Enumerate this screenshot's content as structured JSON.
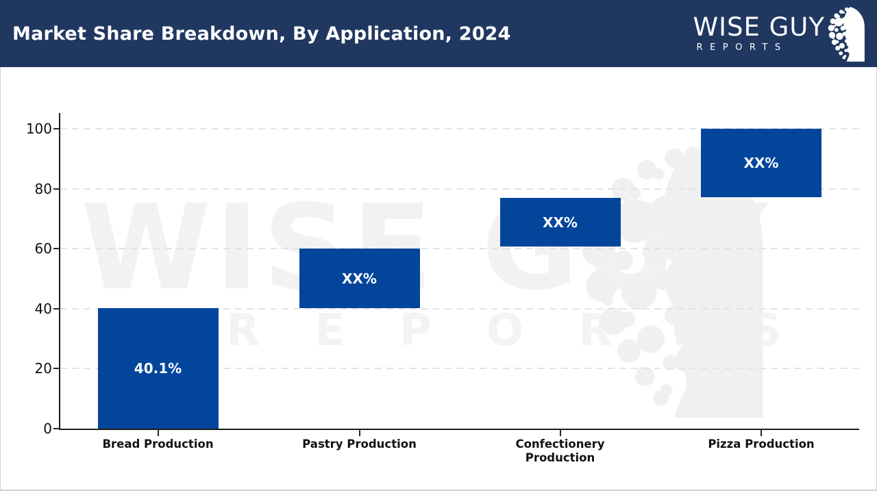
{
  "header": {
    "title": "Market Share Breakdown, By Application, 2024",
    "bg_color": "#203760",
    "logo": {
      "line1": "WISE GUY",
      "line2": "REPORTS"
    }
  },
  "watermark": {
    "line1": "WISE GUY",
    "line2": "REPORTS"
  },
  "chart_data": {
    "type": "bar",
    "subtype": "waterfall",
    "title": "Market Share Breakdown, By Application, 2024",
    "xlabel": "",
    "ylabel": "",
    "categories": [
      "Bread Production",
      "Pastry Production",
      "Confectionery\nProduction",
      "Pizza Production"
    ],
    "segments": [
      {
        "category": "Bread Production",
        "start": 0,
        "end": 40.1,
        "label": "40.1%"
      },
      {
        "category": "Pastry Production",
        "start": 40.1,
        "end": 60.1,
        "label": "XX%"
      },
      {
        "category": "Confectionery Production",
        "start": 60.7,
        "end": 76.9,
        "label": "XX%"
      },
      {
        "category": "Pizza Production",
        "start": 77.2,
        "end": 100,
        "label": "XX%"
      }
    ],
    "yticks": [
      0,
      20,
      40,
      60,
      80,
      100
    ],
    "ylim": [
      0,
      105
    ],
    "bar_color": "#04459c",
    "value_label_color": "#ffffff",
    "grid": "horizontal dashed",
    "gridline_color": "#e3e3e3",
    "legend": "none"
  }
}
